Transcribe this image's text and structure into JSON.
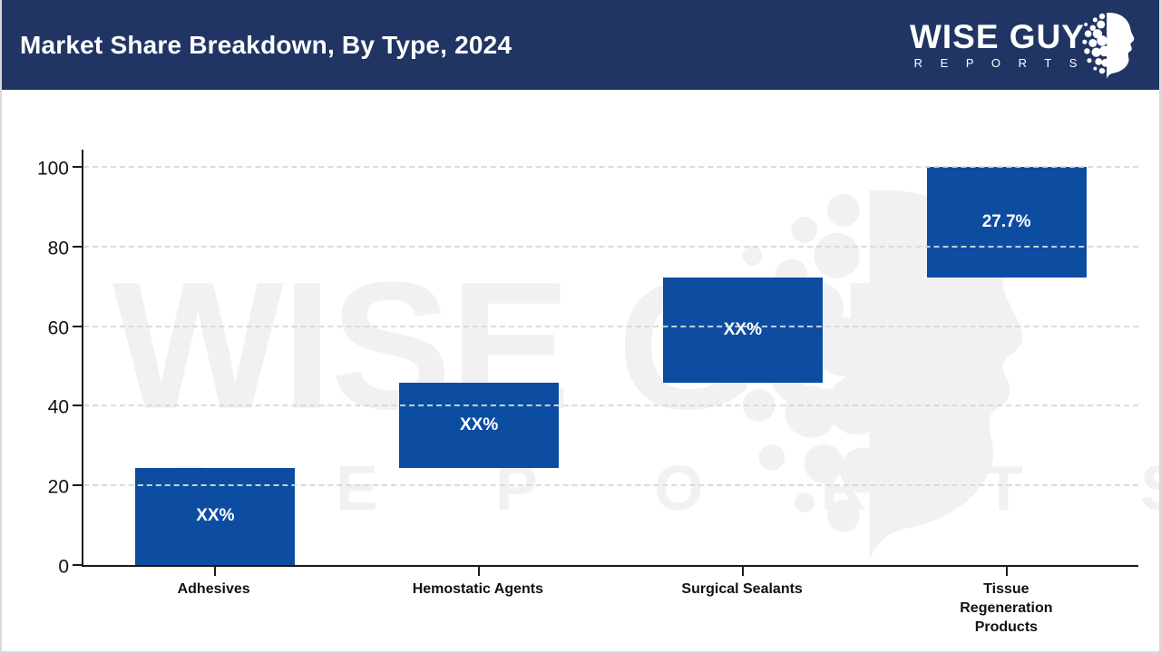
{
  "header": {
    "title": "Market Share Breakdown, By Type, 2024",
    "logo": {
      "brand": "WISE GUY",
      "sub": "R E P O R T S"
    }
  },
  "watermark": {
    "brand": "WISE GUY",
    "sub": "R E P O R T S"
  },
  "colors": {
    "header_bg": "#213564",
    "bar": "#0c4da2",
    "grid": "#d9d9d9",
    "axis": "#1a1a1a",
    "watermark": "#f1f1f4"
  },
  "chart_data": {
    "type": "bar",
    "variant": "waterfall",
    "title": "Market Share Breakdown, By Type, 2024",
    "categories": [
      "Adhesives",
      "Hemostatic Agents",
      "Surgical Sealants",
      "Tissue Regeneration Products"
    ],
    "series": [
      {
        "name": "Market share (%)",
        "segments": [
          {
            "category": "Adhesives",
            "start": 0,
            "end": 24.4,
            "label": "XX%"
          },
          {
            "category": "Hemostatic Agents",
            "start": 24.4,
            "end": 45.8,
            "label": "XX%"
          },
          {
            "category": "Surgical Sealants",
            "start": 45.8,
            "end": 72.3,
            "label": "XX%"
          },
          {
            "category": "Tissue Regeneration Products",
            "start": 72.3,
            "end": 100,
            "label": "27.7%"
          }
        ]
      }
    ],
    "yticks": [
      0,
      20,
      40,
      60,
      80,
      100
    ],
    "ylim": [
      0,
      104.8
    ],
    "xlabel": "",
    "ylabel": "",
    "grid": true,
    "legend": false
  }
}
